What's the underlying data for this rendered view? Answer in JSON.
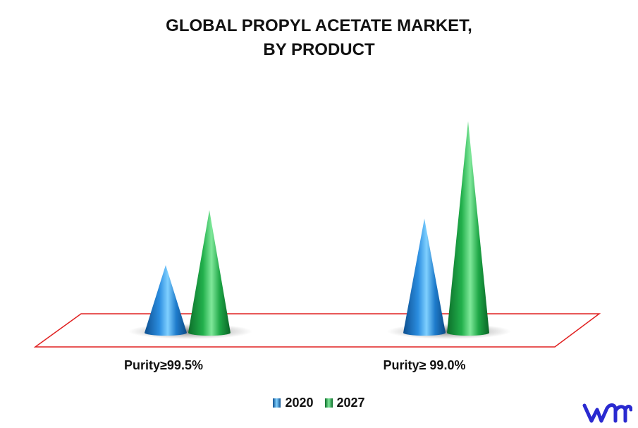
{
  "chart_data": {
    "type": "bar",
    "title_lines": [
      "GLOBAL PROPYL ACETATE MARKET,",
      "BY PRODUCT"
    ],
    "categories": [
      "Purity≥99.5%",
      "Purity≥ 99.0%"
    ],
    "series": [
      {
        "name": "2020",
        "values": [
          0.32,
          0.54
        ],
        "color": "#1a7fd0"
      },
      {
        "name": "2027",
        "values": [
          0.58,
          1.0
        ],
        "color": "#1fb14c"
      }
    ],
    "ylim": [
      0,
      1
    ],
    "grid": false,
    "legend_position": "bottom-center",
    "floor_outline_color": "#e02020",
    "shape": "cone"
  },
  "logo": {
    "name": "vmr-logo",
    "color": "#2a2ad0"
  }
}
